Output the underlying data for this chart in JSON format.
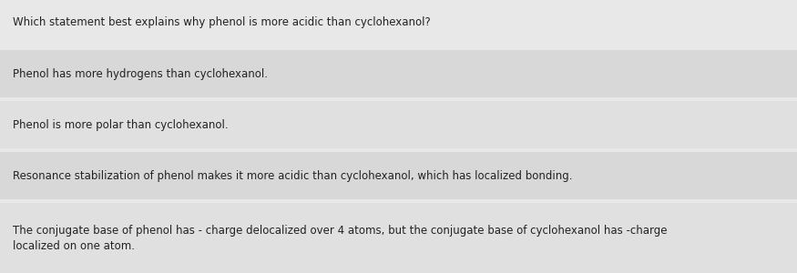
{
  "question": "Which statement best explains why phenol is more acidic than cyclohexanol?",
  "options": [
    "Phenol has more hydrogens than cyclohexanol.",
    "Phenol is more polar than cyclohexanol.",
    "Resonance stabilization of phenol makes it more acidic than cyclohexanol, which has localized bonding.",
    "The conjugate base of phenol has - charge delocalized over 4 atoms, but the conjugate base of cyclohexanol has -charge\nlocalized on one atom."
  ],
  "fig_bg": "#e8e8e8",
  "question_area_bg": "#e2e2e2",
  "option_bg_odd": "#d8d8d8",
  "option_bg_even": "#e0e0e0",
  "question_color": "#222222",
  "option_text_color": "#222222",
  "question_fontsize": 8.5,
  "option_fontsize": 8.5,
  "fig_width": 8.75,
  "fig_height": 3.0,
  "dpi": 100
}
